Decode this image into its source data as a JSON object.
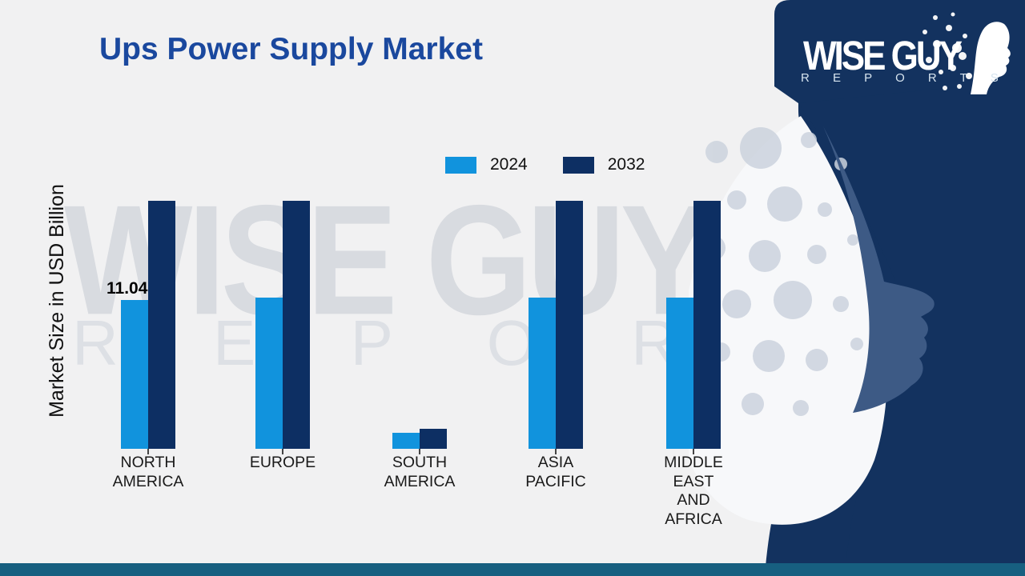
{
  "page": {
    "background": "#f1f1f2",
    "footer_bar_color": "#175f80"
  },
  "title": {
    "text": "Ups Power Supply Market",
    "color": "#1a489e"
  },
  "y_axis_label": "Market Size in USD Billion",
  "legend": {
    "items": [
      {
        "label": "2024",
        "color": "#1193dd"
      },
      {
        "label": "2032",
        "color": "#0d2f63"
      }
    ]
  },
  "logo": {
    "line1": "WISE GUY",
    "line2": "R E P O R T S",
    "box_color": "#13325f"
  },
  "watermark": {
    "line1": "WISE GUY",
    "line2": "R E P O R T S"
  },
  "chart_data": {
    "type": "bar",
    "categories": [
      "NORTH AMERICA",
      "EUROPE",
      "SOUTH AMERICA",
      "ASIA PACIFIC",
      "MIDDLE EAST AND AFRICA"
    ],
    "series": [
      {
        "name": "2024",
        "color": "#1193dd",
        "values": [
          11.04,
          11.2,
          1.2,
          11.2,
          11.2
        ]
      },
      {
        "name": "2032",
        "color": "#0d2f63",
        "values": [
          18.4,
          18.4,
          1.5,
          18.4,
          18.4
        ]
      }
    ],
    "bar_labels": [
      {
        "category_index": 0,
        "series_index": 0,
        "text": "11.04"
      }
    ],
    "title": "Ups Power Supply Market",
    "xlabel": "",
    "ylabel": "Market Size in USD Billion",
    "ylim": [
      0,
      20
    ],
    "grid": false,
    "legend_position": "top-center"
  }
}
